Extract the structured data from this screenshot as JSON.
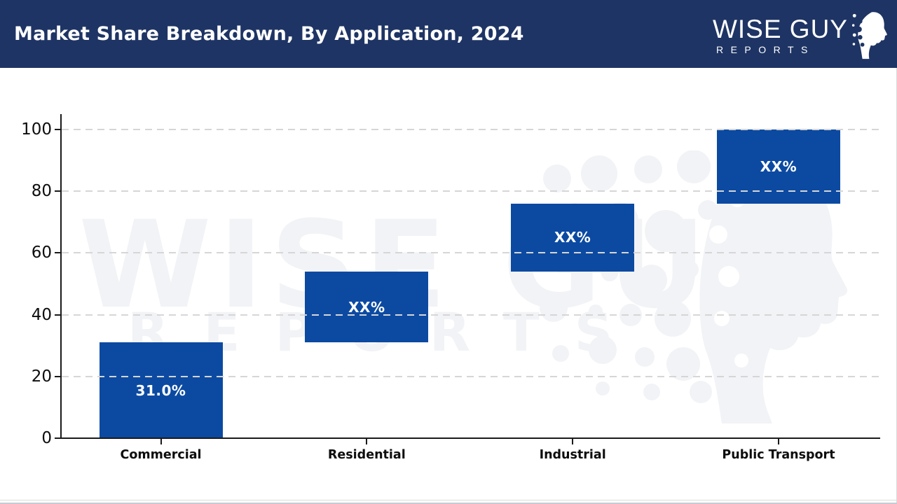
{
  "header": {
    "title": "Market Share Breakdown, By Application, 2024",
    "logo": {
      "name_top": "WISE GUY",
      "name_bottom": "REPORTS"
    }
  },
  "watermark": {
    "line1": "WISE GUY",
    "line2": "REPORTS"
  },
  "colors": {
    "header_bg": "#1e3464",
    "bar": "#0c4aa2",
    "grid": "#d6d6d6",
    "axis": "#1a1a1a",
    "watermark": "#f2f3f6",
    "bar_label": "#ffffff"
  },
  "chart_data": {
    "type": "bar",
    "variant": "floating-waterfall",
    "title": "Market Share Breakdown, By Application, 2024",
    "categories": [
      "Commercial",
      "Residential",
      "Industrial",
      "Public Transport"
    ],
    "segments": [
      {
        "category": "Commercial",
        "start": 0,
        "end": 31,
        "label": "31.0%"
      },
      {
        "category": "Residential",
        "start": 31,
        "end": 54,
        "label": "XX%"
      },
      {
        "category": "Industrial",
        "start": 54,
        "end": 76,
        "label": "XX%"
      },
      {
        "category": "Public Transport",
        "start": 76,
        "end": 100,
        "label": "XX%"
      }
    ],
    "yticks": [
      0,
      20,
      40,
      60,
      80,
      100
    ],
    "ylim": [
      0,
      105
    ],
    "xlabel": "",
    "ylabel": "",
    "legend": "none",
    "grid": {
      "horizontal": true,
      "style": "dashed",
      "drawn_over_bars": true
    }
  }
}
